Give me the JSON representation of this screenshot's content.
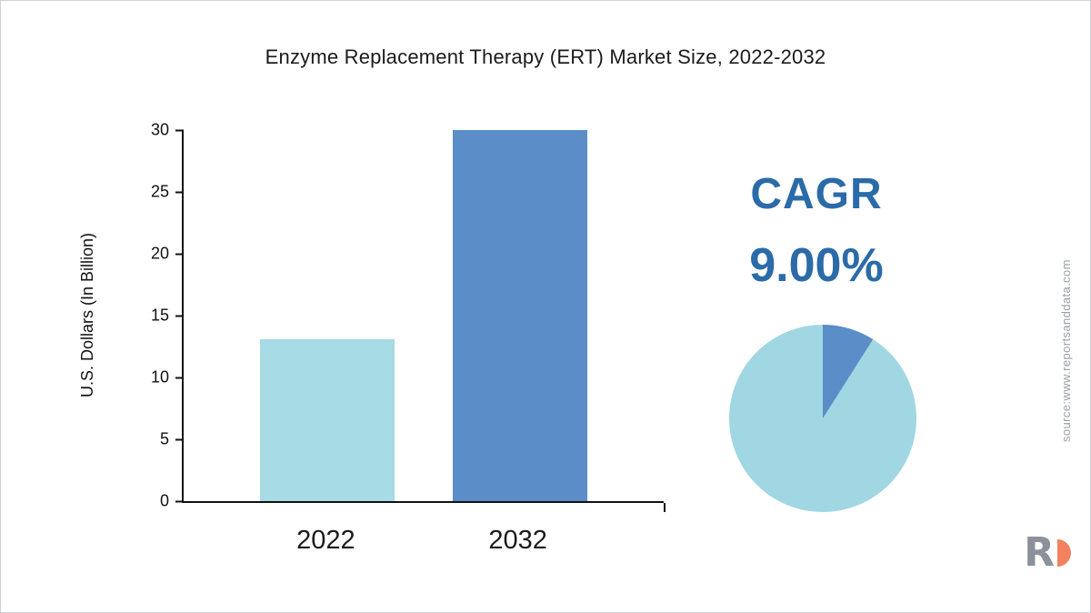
{
  "title": "Enzyme Replacement Therapy (ERT) Market Size, 2022-2032",
  "chart_data": {
    "type": "bar",
    "title": "Enzyme Replacement Therapy (ERT) Market Size, 2022-2032",
    "categories": [
      "2022",
      "2032"
    ],
    "values": [
      13.1,
      30
    ],
    "xlabel": "",
    "ylabel": "U.S. Dollars (In Billion)",
    "ylim": [
      0,
      30
    ],
    "ytick_step": 5,
    "yticks": [
      0,
      5,
      10,
      15,
      20,
      25,
      30
    ],
    "grid": false,
    "legend": "none",
    "bar_colors": [
      "#a6dae5",
      "#5b8dc8"
    ],
    "pie": {
      "label": "CAGR",
      "value_label": "9.00%",
      "percent": 9,
      "slice_color": "#5b8dc8",
      "rest_color": "#a0d7e2"
    }
  },
  "cagr": {
    "heading": "CAGR",
    "value": "9.00%"
  },
  "source": "source:www.reportsanddata.com",
  "logo": {
    "letter": "R"
  },
  "colors": {
    "accent_blue": "#2b6ba8",
    "bar_light": "#a6dae5",
    "bar_dark": "#5b8dc8",
    "axis": "#111111",
    "source_text": "#9aa0a6",
    "logo_gray": "#8b919a",
    "logo_orange": "#f0825f"
  }
}
